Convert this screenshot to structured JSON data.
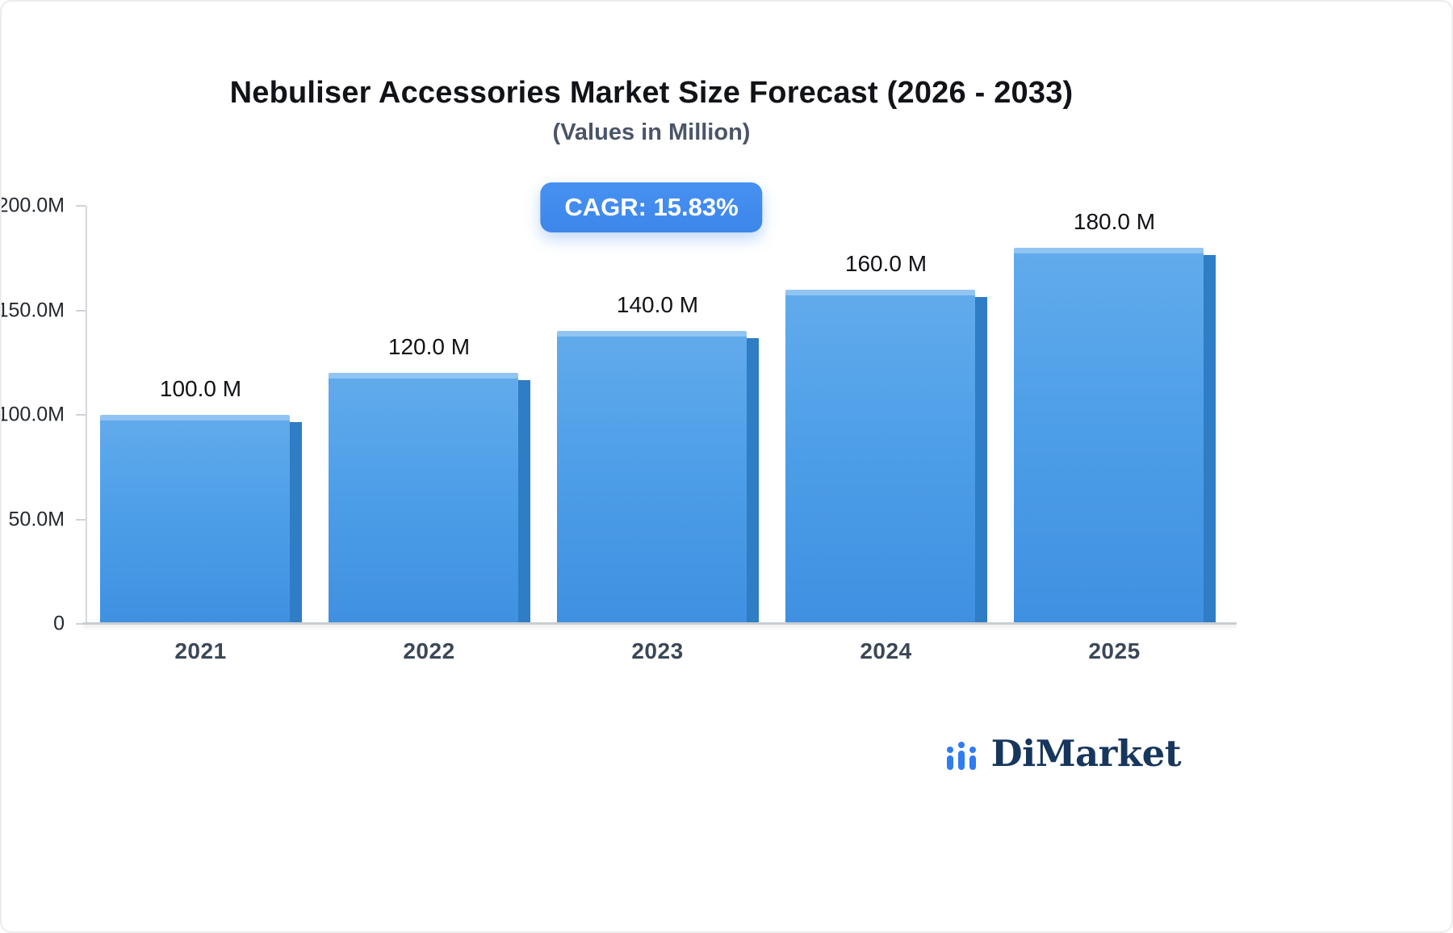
{
  "header": {
    "title": "Nebuliser Accessories Market Size Forecast (2026 - 2033)",
    "subtitle": "(Values in Million)",
    "cagr_badge": "CAGR: 15.83%"
  },
  "brand": {
    "name": "DiMarket"
  },
  "chart_data": {
    "type": "bar",
    "title": "Nebuliser Accessories Market Size Forecast (2026 - 2033)",
    "subtitle": "(Values in Million)",
    "categories": [
      "2021",
      "2022",
      "2023",
      "2024",
      "2025"
    ],
    "values": [
      100.0,
      120.0,
      140.0,
      160.0,
      180.0
    ],
    "bar_labels": [
      "100.0 M",
      "120.0 M",
      "140.0 M",
      "160.0 M",
      "180.0 M"
    ],
    "unit": "Million",
    "ylim": [
      0,
      200
    ],
    "y_ticks": [
      {
        "value": 0,
        "label": "0"
      },
      {
        "value": 50,
        "label": "50.0M"
      },
      {
        "value": 100,
        "label": "100.0M"
      },
      {
        "value": 150,
        "label": "150.0M"
      },
      {
        "value": 200,
        "label": "200.0M"
      }
    ],
    "annotations": [
      "CAGR: 15.83%"
    ],
    "legend": "none",
    "grid": "off",
    "colors": {
      "bar_face_top": "#62ABEC",
      "bar_face_bottom": "#3F90E1",
      "bar_side": "#2E7DC5",
      "badge": "#4791F2",
      "axis": "#D5D8DD",
      "brand_blue": "#2F7DF0",
      "brand_navy": "#17365D"
    }
  }
}
